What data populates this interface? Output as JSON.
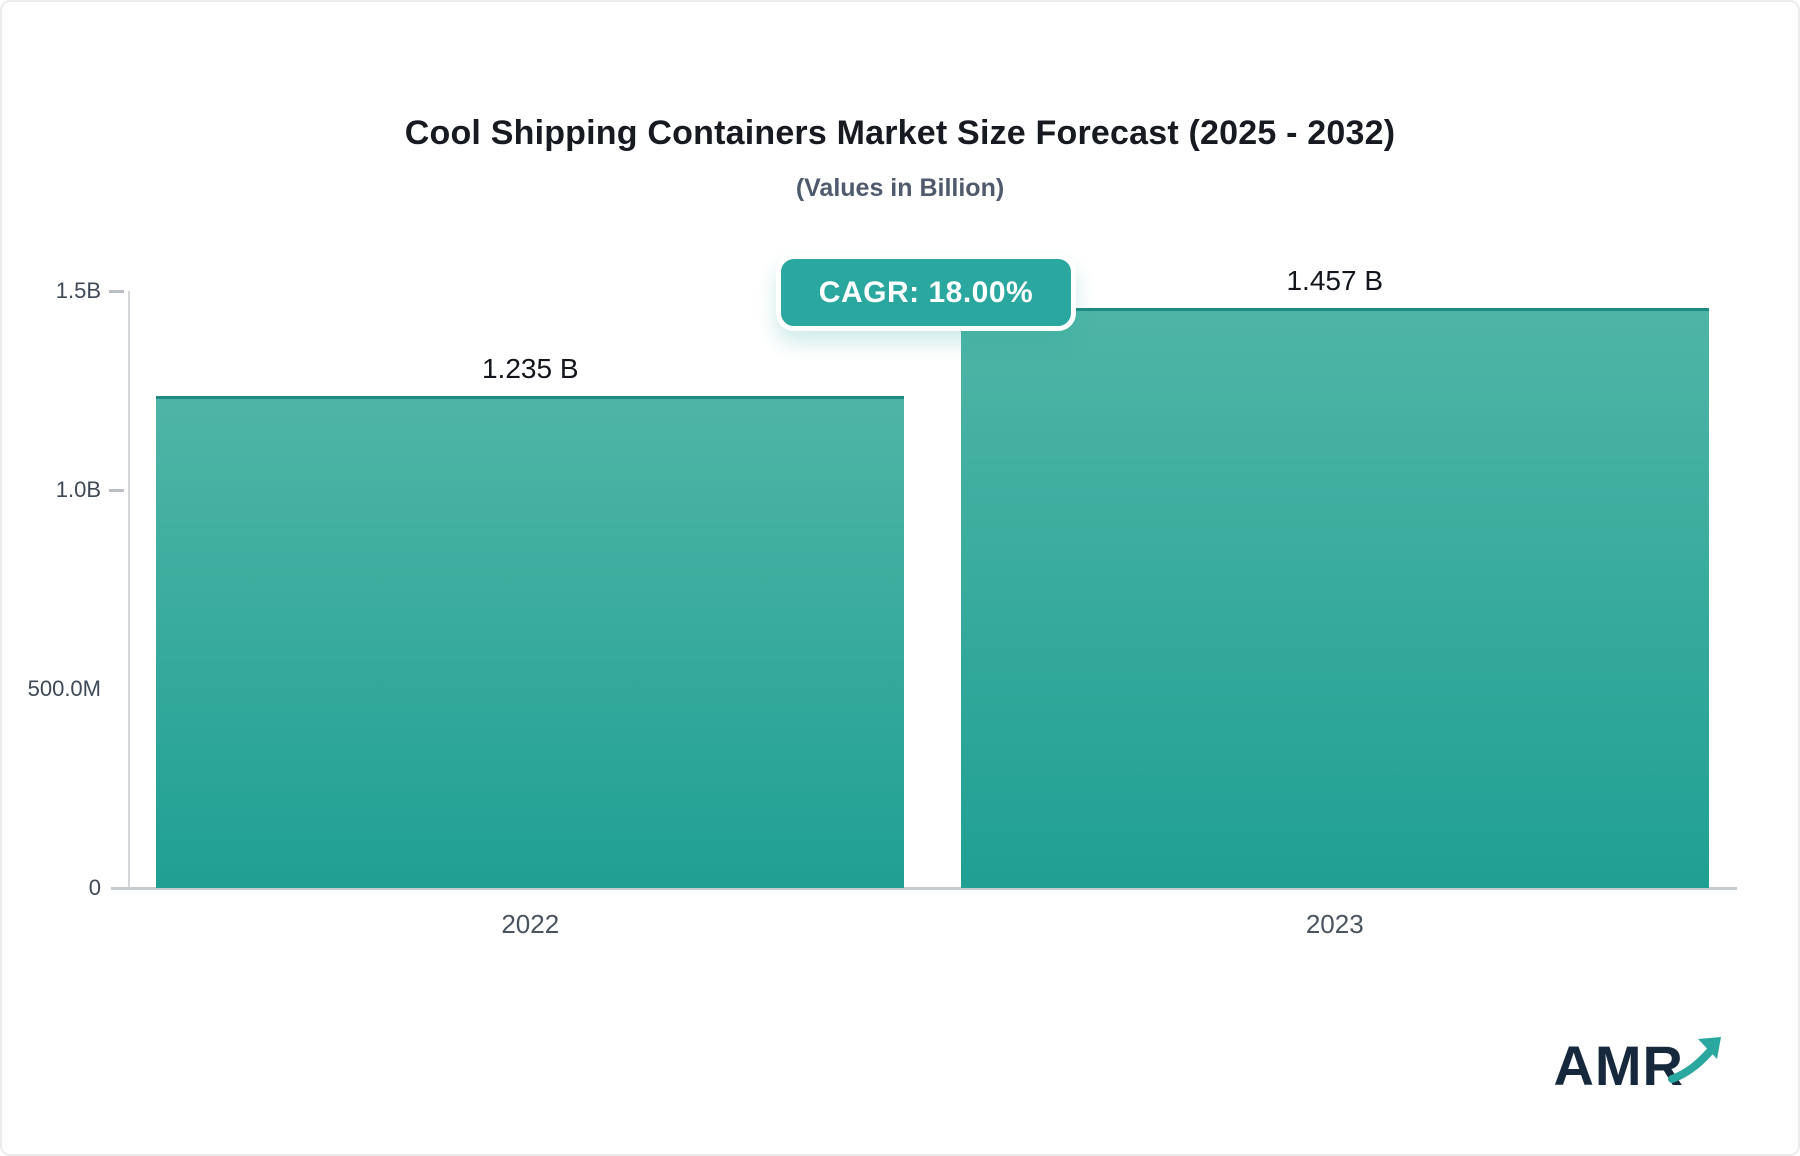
{
  "colors": {
    "accent": "#2AA79E",
    "bar_gradient_top": "#4FB5A6",
    "bar_gradient_bottom": "#1FA093",
    "bar_top_edge": "#1E8A82",
    "axis": "#C6CBD0",
    "title_text": "#171B21",
    "subtitle_text": "#4F5B6C",
    "tick_text": "#3F4A56",
    "logo_text": "#16283C"
  },
  "header": {
    "title": "Cool Shipping Containers Market Size Forecast (2025 - 2032)",
    "subtitle": "(Values in Billion)"
  },
  "cagr_badge": {
    "label": "CAGR: 18.00%"
  },
  "chart_data": {
    "type": "bar",
    "title": "Cool Shipping Containers Market Size Forecast (2025 - 2032)",
    "subtitle": "(Values in Billion)",
    "unit": "Billion",
    "categories": [
      "2022",
      "2023"
    ],
    "values": [
      1.235,
      1.457
    ],
    "value_labels": [
      "1.235 B",
      "1.457 B"
    ],
    "ylim": [
      0,
      1.5
    ],
    "yticks": [
      {
        "label": "0",
        "value": 0,
        "dash": false
      },
      {
        "label": "500.0M",
        "value": 0.5,
        "dash": false
      },
      {
        "label": "1.0B",
        "value": 1.0,
        "dash": true
      },
      {
        "label": "1.5B",
        "value": 1.5,
        "dash": true
      }
    ],
    "grid": false,
    "legend": false,
    "annotations": [
      {
        "text": "CAGR: 18.00%",
        "position": "top-center"
      }
    ]
  },
  "logo": {
    "text": "AMR"
  }
}
